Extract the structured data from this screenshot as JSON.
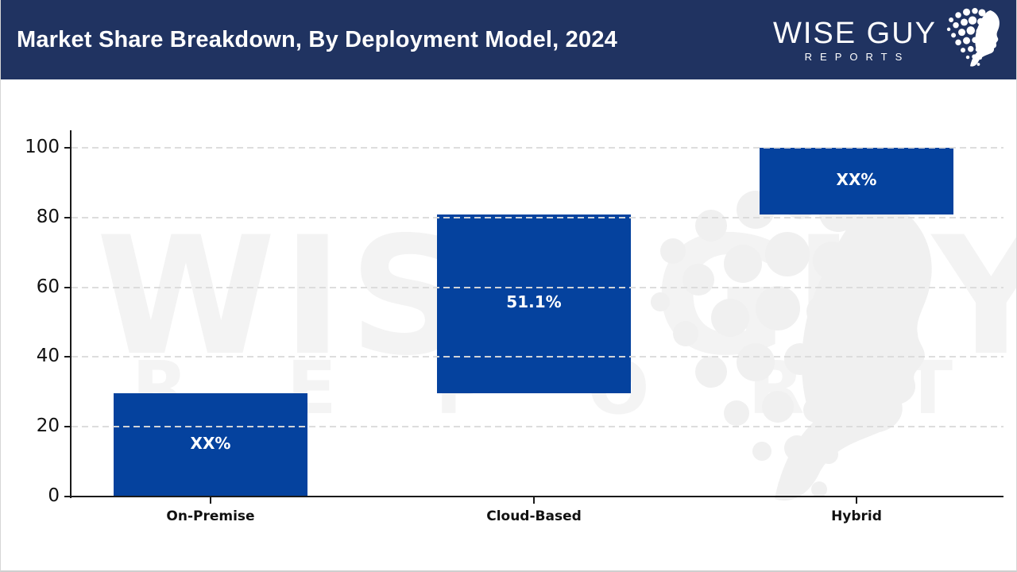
{
  "header": {
    "title": "Market Share Breakdown, By Deployment Model, 2024",
    "logo": {
      "line1": "WISE GUY",
      "line2": "REPORTS"
    }
  },
  "watermark": {
    "line1": "WISE GUY",
    "line2": "REPORTS"
  },
  "colors": {
    "header_bg": "#203361",
    "bar": "#05429e",
    "grid": "#dbdbdb",
    "axis": "#1a1a1a",
    "bar_label_text": "#ffffff",
    "tick_text": "#111111",
    "watermark": "#f3f3f3"
  },
  "chart_data": {
    "type": "bar",
    "subtype": "floating-stacked-percentage",
    "title": "Market Share Breakdown, By Deployment Model, 2024",
    "categories": [
      "On-Premise",
      "Cloud-Based",
      "Hybrid"
    ],
    "segments": [
      {
        "category": "On-Premise",
        "start": 0,
        "end": 29.7,
        "label": "XX%"
      },
      {
        "category": "Cloud-Based",
        "start": 29.7,
        "end": 80.8,
        "label": "51.1%"
      },
      {
        "category": "Hybrid",
        "start": 80.8,
        "end": 100,
        "label": "XX%"
      }
    ],
    "yticks": [
      0,
      20,
      40,
      60,
      80,
      100
    ],
    "ylim": [
      0,
      104.5
    ],
    "xlabel": "",
    "ylabel": "",
    "grid": "dashed-horizontal",
    "legend": "none",
    "bar_color": "#05429e"
  }
}
